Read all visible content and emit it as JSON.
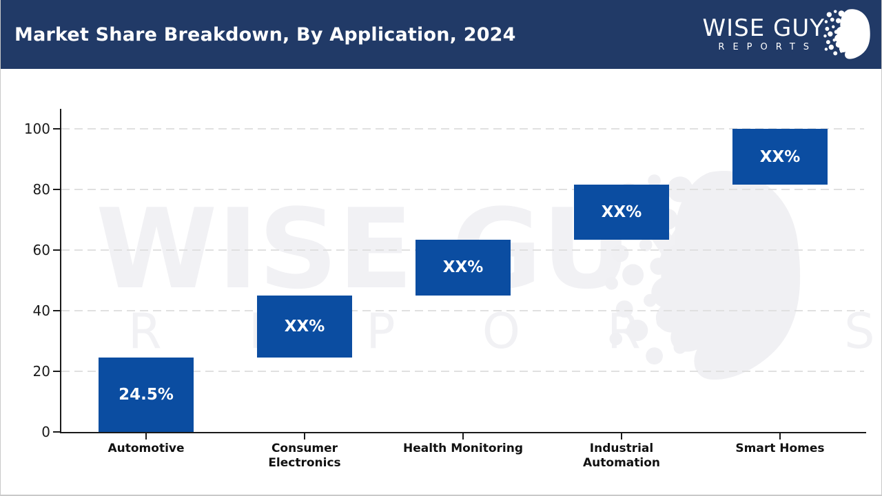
{
  "header": {
    "title": "Market Share Breakdown, By Application, 2024",
    "bg_color": "#213a67",
    "logo": {
      "line1": "WISE GUY",
      "line2": "REPORTS"
    }
  },
  "watermark": {
    "line1": "WISE GUY",
    "line2": "R E P O R T S"
  },
  "chart_data": {
    "type": "bar",
    "subtype": "waterfall",
    "title": "Market Share Breakdown, By Application, 2024",
    "xlabel": "",
    "ylabel": "",
    "ylim": [
      0,
      100
    ],
    "yticks": [
      0,
      20,
      40,
      60,
      80,
      100
    ],
    "grid": "horizontal dashed",
    "gridline_color": "#e0e0e0",
    "bar_color": "#0b4da1",
    "bar_label_color": "#ffffff",
    "categories": [
      "Automotive",
      "Consumer Electronics",
      "Health Monitoring",
      "Industrial Automation",
      "Smart Homes"
    ],
    "segments": [
      {
        "category": "Automotive",
        "lines": [
          "Automotive"
        ],
        "start": 0,
        "end": 24.5,
        "value": 24.5,
        "label": "24.5%"
      },
      {
        "category": "Consumer Electronics",
        "lines": [
          "Consumer",
          "Electronics"
        ],
        "start": 24.5,
        "end": 45,
        "value": 20.5,
        "label": "XX%"
      },
      {
        "category": "Health Monitoring",
        "lines": [
          "Health Monitoring"
        ],
        "start": 45,
        "end": 63.5,
        "value": 18.5,
        "label": "XX%"
      },
      {
        "category": "Industrial Automation",
        "lines": [
          "Industrial",
          "Automation"
        ],
        "start": 63.5,
        "end": 81.5,
        "value": 18,
        "label": "XX%"
      },
      {
        "category": "Smart Homes",
        "lines": [
          "Smart Homes"
        ],
        "start": 81.5,
        "end": 100,
        "value": 18.5,
        "label": "XX%"
      }
    ]
  }
}
